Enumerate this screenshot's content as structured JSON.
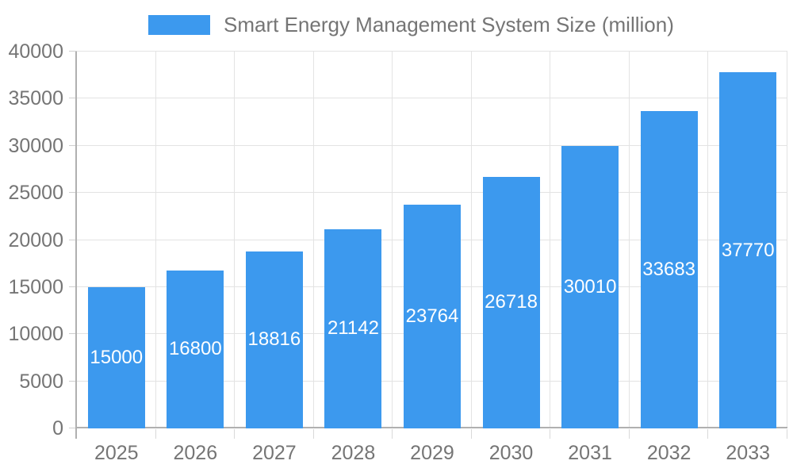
{
  "chart_data": {
    "type": "bar",
    "title": "Smart Energy Management System Size (million)",
    "legend": {
      "position": "top",
      "label": "Smart Energy Management System Size (million)"
    },
    "categories": [
      "2025",
      "2026",
      "2027",
      "2028",
      "2029",
      "2030",
      "2031",
      "2032",
      "2033"
    ],
    "series": [
      {
        "name": "Smart Energy Management System Size (million)",
        "values": [
          15000,
          16800,
          18816,
          21142,
          23764,
          26718,
          30010,
          33683,
          37770
        ]
      }
    ],
    "value_labels": "inside-center",
    "xlabel": "",
    "ylabel": "",
    "ylim": [
      0,
      40000
    ],
    "y_ticks": [
      0,
      5000,
      10000,
      15000,
      20000,
      25000,
      30000,
      35000,
      40000
    ],
    "grid": true,
    "colors": {
      "bar": "#3C99EE",
      "grid": "#E3E3E3",
      "axis": "#B0B0B0",
      "tick": "#CFCFCF",
      "text": "#757575",
      "value_label": "#FFFFFF",
      "background": "#FFFFFF"
    }
  }
}
